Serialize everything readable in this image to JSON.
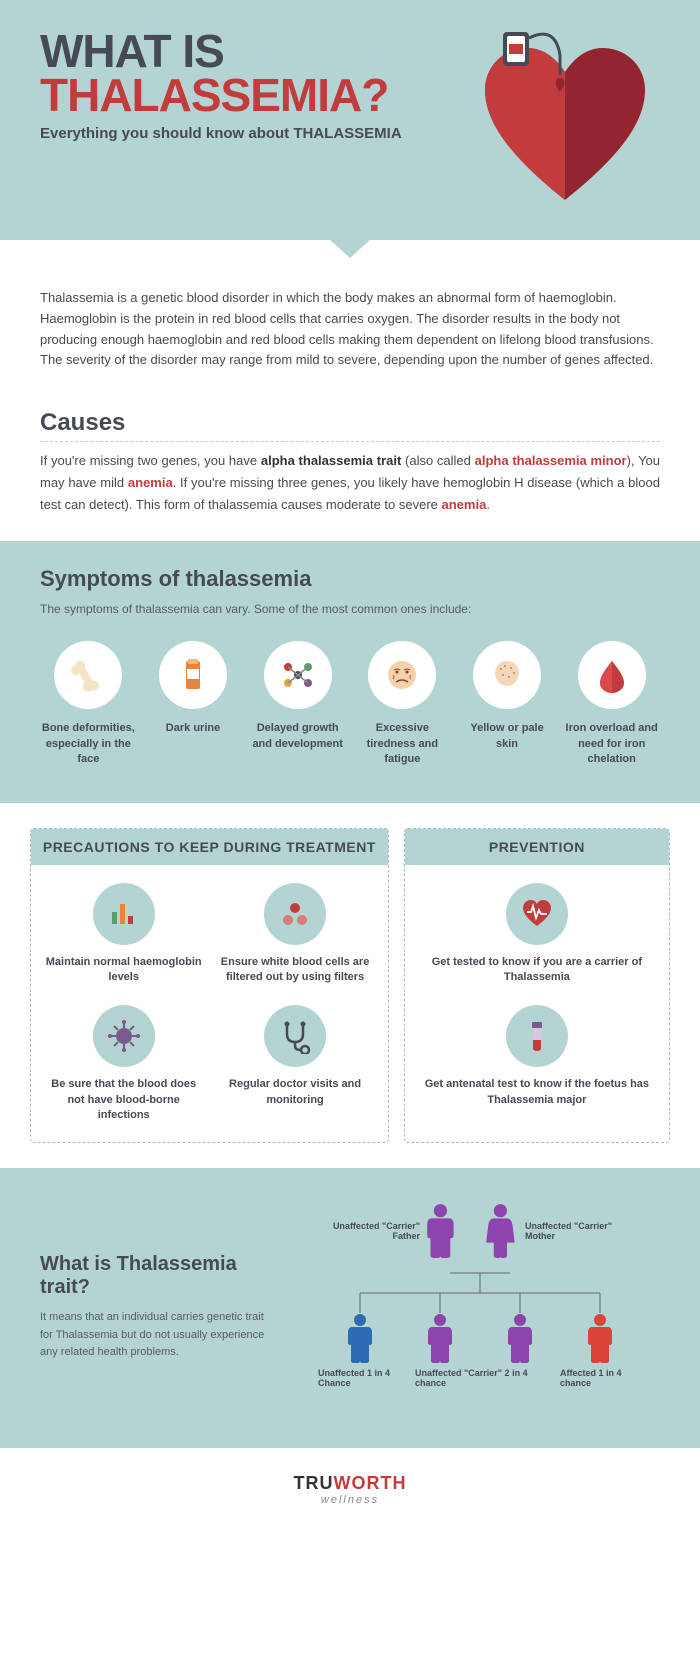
{
  "colors": {
    "teal": "#b4d4d4",
    "red": "#c23c3d",
    "dark": "#464a55",
    "darkred": "#922530",
    "purple": "#8e44ad",
    "blue": "#2e6bb5",
    "personred": "#d94436"
  },
  "hero": {
    "line1": "WHAT IS",
    "line2": "THALASSEMIA?",
    "sub": "Everything you should know about THALASSEMIA"
  },
  "intro": "Thalassemia is a genetic blood disorder in which the body makes an abnormal form of haemoglobin. Haemoglobin is the protein in red blood cells that carries oxygen. The disorder results in the body not producing enough haemoglobin and red blood cells making them dependent on lifelong blood transfusions. The severity of the disorder may range from mild to severe, depending upon the number of genes affected.",
  "causes": {
    "title": "Causes",
    "pre": "If you're missing two genes, you have ",
    "b1": "alpha thalassemia trait",
    "mid1": " (also called ",
    "r1": "alpha thalassemia minor",
    "mid2": "), You may have mild ",
    "r2": "anemia",
    "mid3": ". If you're missing three genes, you likely have hemoglobin H disease (which a blood test can detect). This form of thalassemia causes moderate to severe ",
    "r3": "anemia",
    "end": "."
  },
  "symptoms": {
    "title": "Symptoms of thalassemia",
    "sub": "The symptoms of thalassemia can vary. Some of the most common ones include:",
    "items": [
      {
        "icon": "bone",
        "label": "Bone deformities, especially in the face"
      },
      {
        "icon": "urine",
        "label": "Dark urine"
      },
      {
        "icon": "growth",
        "label": "Delayed growth and development"
      },
      {
        "icon": "tired",
        "label": "Excessive tiredness and fatigue"
      },
      {
        "icon": "skin",
        "label": "Yellow or pale skin"
      },
      {
        "icon": "iron",
        "label": "Iron overload and need for iron chelation"
      }
    ]
  },
  "precautions": {
    "title": "PRECAUTIONS TO KEEP DURING TREATMENT",
    "items": [
      {
        "icon": "bars",
        "label": "Maintain normal haemoglobin levels"
      },
      {
        "icon": "cells",
        "label": "Ensure white blood cells are filtered out by using filters"
      },
      {
        "icon": "virus",
        "label": "Be sure that the blood does not have blood-borne infections"
      },
      {
        "icon": "steth",
        "label": "Regular doctor visits and monitoring"
      }
    ]
  },
  "prevention": {
    "title": "PREVENTION",
    "items": [
      {
        "icon": "hearttest",
        "label": "Get tested to know if you are a carrier of Thalassemia"
      },
      {
        "icon": "tube",
        "label": "Get antenatal test to know if the foetus has Thalassemia major"
      }
    ]
  },
  "trait": {
    "title": "What is Thalassemia trait?",
    "text": "It means that an individual carries genetic trait for Thalassemia but do not usually experience any related health problems.",
    "labels": {
      "father": "Unaffected \"Carrier\" Father",
      "mother": "Unaffected \"Carrier\" Mother",
      "c1": "Unaffected 1 in 4 Chance",
      "c2": "Unaffected \"Carrier\" 2 in 4 chance",
      "c3": "Affected 1 in 4 chance"
    }
  },
  "footer": {
    "tru": "TRU",
    "worth": "WORTH",
    "well": "wellness"
  }
}
